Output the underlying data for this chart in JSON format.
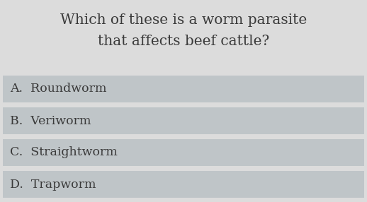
{
  "question_line1": "Which of these is a worm parasite",
  "question_line2": "that affects beef cattle?",
  "options": [
    "A.  Roundworm",
    "B.  Veriworm",
    "C.  Straightworm",
    "D.  Trapworm"
  ],
  "fig_bg_color": "#dcdcdc",
  "option_bg_color": "#bfc5c8",
  "option_text_color": "#3a3a3a",
  "question_text_color": "#3a3a3a",
  "question_fontsize": 14.5,
  "option_fontsize": 12.5
}
